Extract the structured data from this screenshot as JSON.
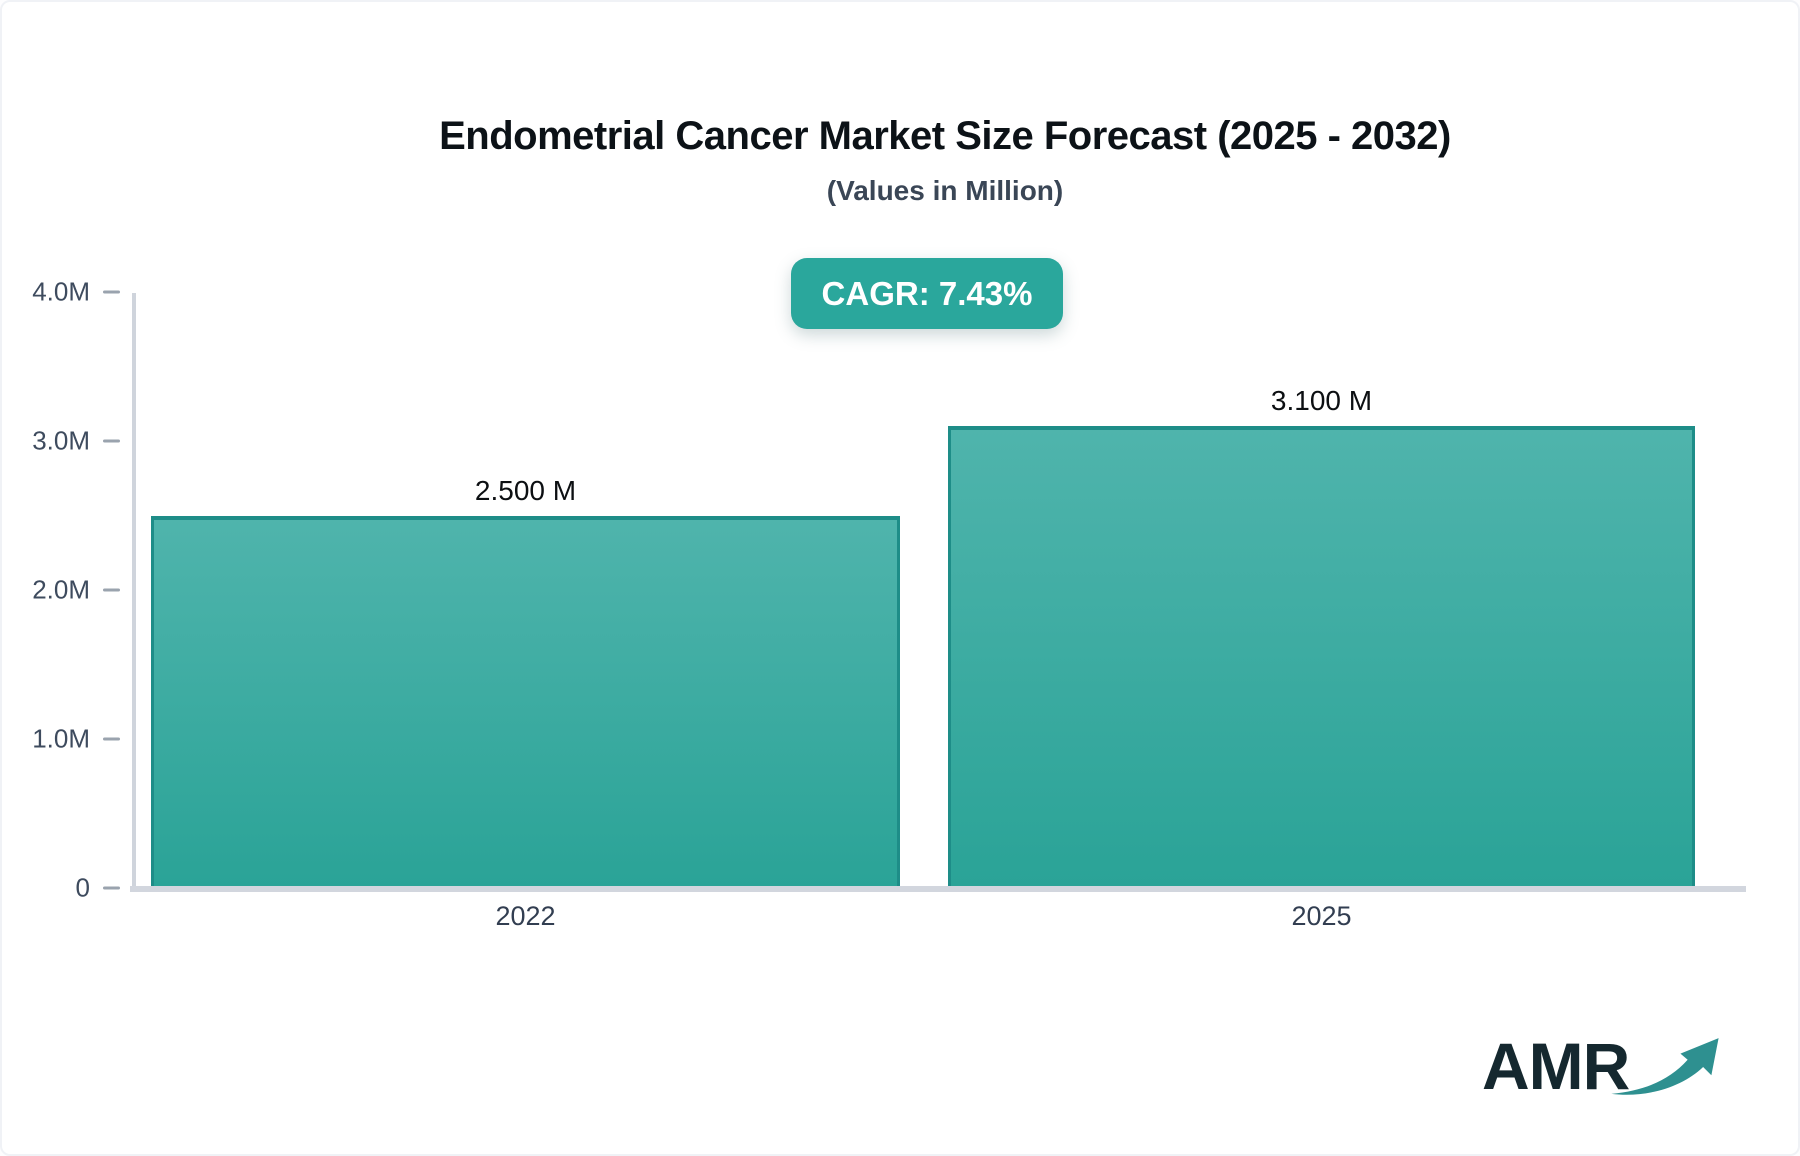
{
  "chart_data": {
    "type": "bar",
    "title": "Endometrial Cancer Market Size Forecast (2025 - 2032)",
    "subtitle": "(Values in Million)",
    "cagr_label": "CAGR: 7.43%",
    "cagr_percent": 7.43,
    "unit": "Million",
    "categories": [
      "2022",
      "2025"
    ],
    "values": [
      2.5,
      3.1
    ],
    "bars": [
      {
        "category": "2022",
        "value": 2.5,
        "label": "2.500 M"
      },
      {
        "category": "2025",
        "value": 3.1,
        "label": "3.100 M"
      }
    ],
    "ylim": [
      0,
      4.0
    ],
    "y_ticks": [
      {
        "label": "4.0M",
        "value": 4.0
      },
      {
        "label": "3.0M",
        "value": 3.0
      },
      {
        "label": "2.0M",
        "value": 2.0
      },
      {
        "label": "1.0M",
        "value": 1.0
      },
      {
        "label": "0",
        "value": 0.0
      }
    ],
    "grid": false,
    "legend_position": "none"
  },
  "colors": {
    "bar_gradient_top": "#4fb4ac",
    "bar_gradient_bottom": "#2aa397",
    "bar_border": "#1e8d88",
    "badge_bg": "#2aa79c",
    "badge_text": "#ffffff",
    "axis_line": "#d2d6de",
    "tick_label": "#3e4b5e",
    "title_text": "#0c1217",
    "logo_text": "#15282f",
    "logo_arrow": "#2e9090"
  },
  "logo": {
    "text": "AMR"
  }
}
